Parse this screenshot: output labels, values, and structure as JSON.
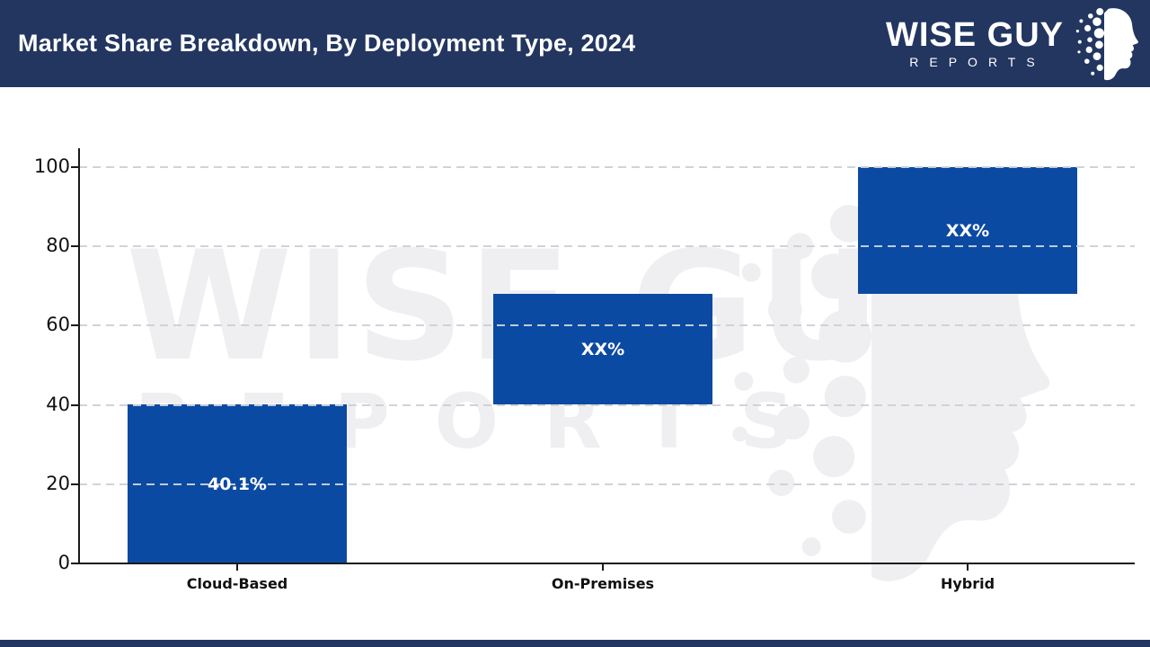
{
  "header": {
    "title": "Market Share Breakdown, By Deployment Type, 2024",
    "logo": {
      "line1": "WISE GUY",
      "line2": "REPORTS"
    },
    "bg_color": "#223660"
  },
  "watermark": {
    "line1": "WISE GUY",
    "line2": "REPORTS",
    "color": "#EFEFF2"
  },
  "footer": {
    "bg_color": "#223660"
  },
  "chart_data": {
    "type": "bar",
    "variant": "floating-segment-waterfall",
    "title": "Market Share Breakdown, By Deployment Type, 2024",
    "categories": [
      "Cloud-Based",
      "On-Premises",
      "Hybrid"
    ],
    "bars": [
      {
        "category": "Cloud-Based",
        "label": "40.1%",
        "start": 0,
        "end": 40.1
      },
      {
        "category": "On-Premises",
        "label": "XX%",
        "start": 40.1,
        "end": 68
      },
      {
        "category": "Hybrid",
        "label": "XX%",
        "start": 68,
        "end": 100
      }
    ],
    "y_ticks": [
      0,
      20,
      40,
      60,
      80,
      100
    ],
    "ylim": [
      0,
      105
    ],
    "xlabel": "",
    "ylabel": "",
    "grid": true,
    "grid_style": "dashed",
    "legend": false,
    "bar_color": "#0B4AA2",
    "bar_label_color": "#FFFFFF",
    "axis_color": "#1A1A1A",
    "grid_color": "#D9DDE3"
  }
}
